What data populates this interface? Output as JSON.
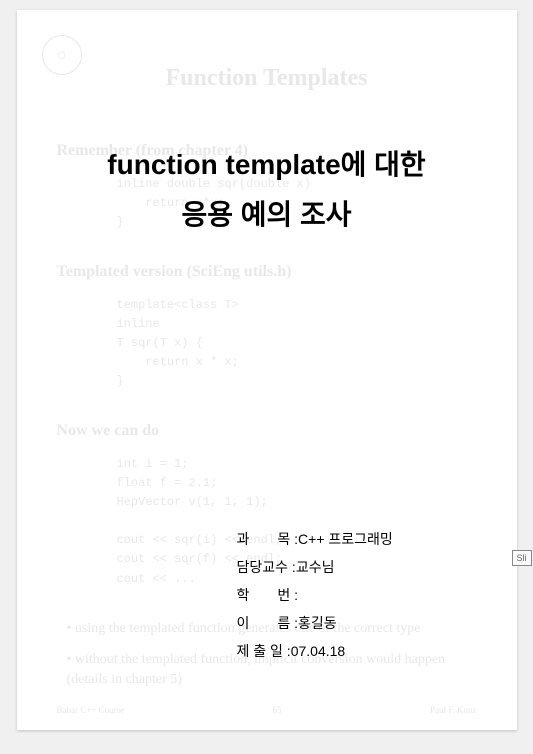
{
  "background": {
    "title": "Function Templates",
    "remember_heading": "Remember (from chapter 4)",
    "remember_code": "inline double sqr(double x)\n    return x*x;\n}",
    "templated_heading": "Templated version (SciEng utils.h)",
    "templated_code": "template<class T>\ninline\nT sqr(T x) {\n    return x * x;\n}",
    "now_heading": "Now we can do",
    "now_code": "int i = 1;\nfloat f = 2.1;\nHepVector v(1, 1, 1);\n\ncout << sqr(i) << endl;\ncout << sqr(f) << endl;\ncout << ...",
    "bullet1": "using the templated function generates one of the correct type",
    "bullet2": "without the templated function, implicit conversion would happen (details in chapter 5)",
    "footer_left": "Babar C++ Course",
    "footer_center": "65",
    "footer_right": "Paul F. Kunz"
  },
  "main_title_line1": "function template에 대한",
  "main_title_line2": "응용 예의 조사",
  "info": {
    "course_label": "과　　목 : ",
    "course_value": "C++ 프로그래밍",
    "prof_label": "담당교수 : ",
    "prof_value": "교수님",
    "dept_label": "학　　번 : ",
    "dept_value": "",
    "name_label": "이　　름 : ",
    "name_value": "홍길동",
    "date_label": "제 출 일 : ",
    "date_value": "07.04.18"
  },
  "side_tab": "Sli"
}
